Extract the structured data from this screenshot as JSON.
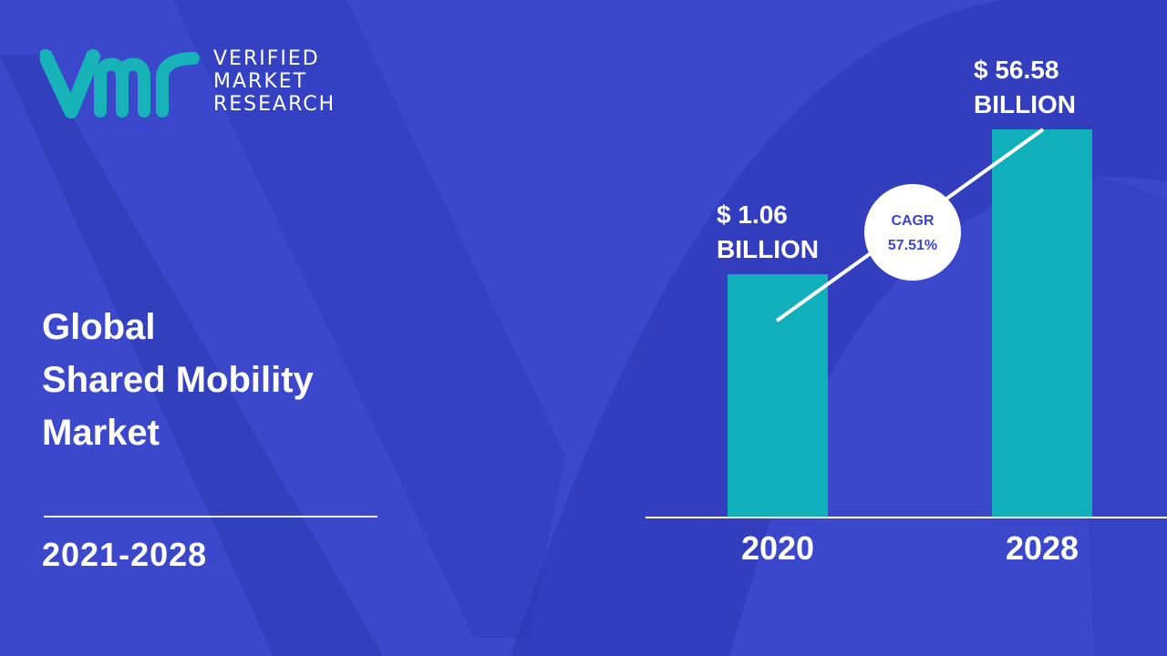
{
  "brand": {
    "line1": "VERIFIED",
    "line2": "MARKET",
    "line3": "RESEARCH",
    "accent": "#18b3b8",
    "background": "#3b48cc"
  },
  "title": {
    "line1": "Global",
    "line2": "Shared Mobility",
    "line3": "Market"
  },
  "period": "2021-2028",
  "chart_data": {
    "type": "bar",
    "categories": [
      "2020",
      "2028"
    ],
    "values": [
      1.06,
      56.58
    ],
    "value_labels": [
      {
        "line1": "$ 1.06",
        "line2": "BILLION"
      },
      {
        "line1": "$ 56.58",
        "line2": "BILLION"
      }
    ],
    "cagr_label": "CAGR",
    "cagr_value": "57.51%",
    "bar_color": "#11aebc",
    "title": "",
    "xlabel": "",
    "ylabel": ""
  }
}
